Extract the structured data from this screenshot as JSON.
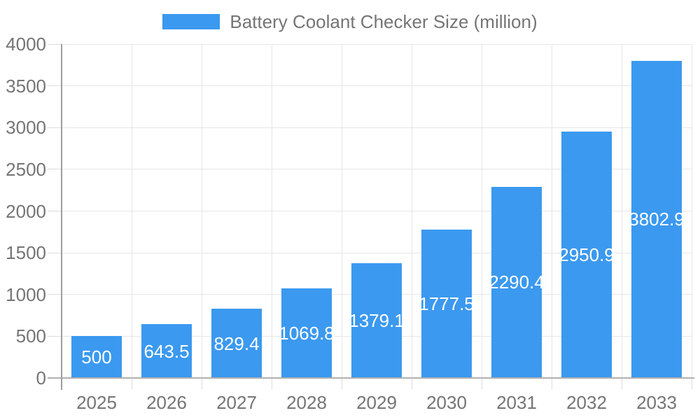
{
  "chart_data": {
    "type": "bar",
    "title": "Battery Coolant Checker Size (million)",
    "categories": [
      "2025",
      "2026",
      "2027",
      "2028",
      "2029",
      "2030",
      "2031",
      "2032",
      "2033"
    ],
    "values": [
      500,
      643.5,
      829.4,
      1069.8,
      1379.1,
      1777.5,
      2290.4,
      2950.9,
      3802.9
    ],
    "bar_labels": [
      "500",
      "643.5",
      "829.4",
      "1069.8",
      "1379.1",
      "1777.5",
      "2290.4",
      "2950.9",
      "3802.9"
    ],
    "y_ticks": [
      0,
      500,
      1000,
      1500,
      2000,
      2500,
      3000,
      3500,
      4000
    ],
    "ylim": [
      0,
      4000
    ],
    "xlabel": "",
    "ylabel": "",
    "grid": true,
    "legend_position": "top-center",
    "style": {
      "bar_color": "#3B99EF",
      "bar_label_color": "#FFFFFF",
      "axis_text_color": "#757575",
      "title_color": "#757575",
      "grid_color": "#E6E6E6",
      "tick_color": "#DDDDDD",
      "baseline_color": "#B0B0B0",
      "axis_line_color": "#9E9E9E",
      "background": "#FFFFFF"
    }
  }
}
